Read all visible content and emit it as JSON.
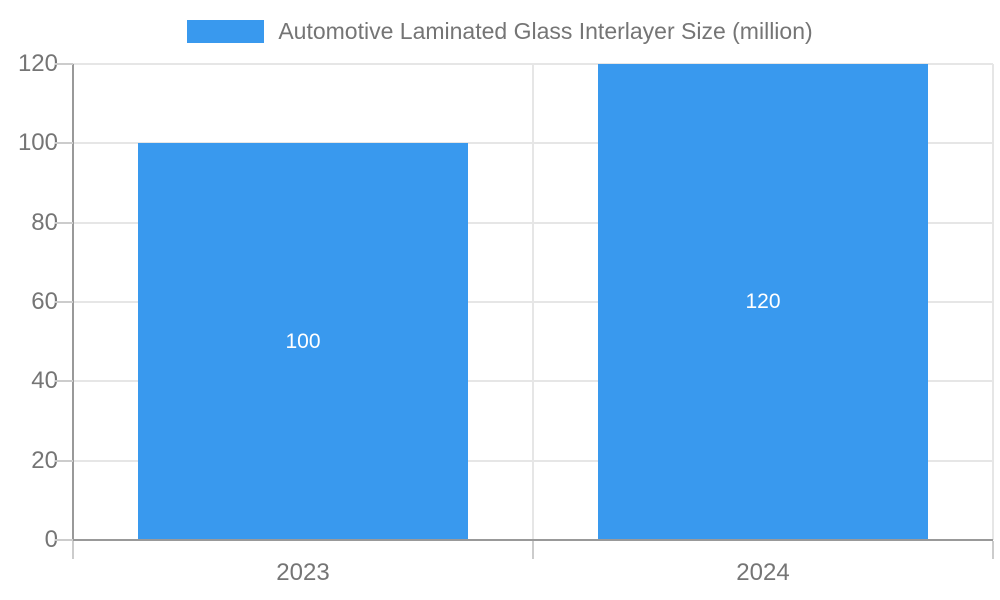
{
  "chart_data": {
    "type": "bar",
    "title": "Automotive Laminated Glass Interlayer Size (million)",
    "categories": [
      "2023",
      "2024"
    ],
    "series": [
      {
        "name": "Automotive Laminated Glass Interlayer Size (million)",
        "values": [
          100,
          120
        ]
      }
    ],
    "value_labels": [
      "100",
      "120"
    ],
    "xlabel": "",
    "ylabel": "",
    "ylim": [
      0,
      120
    ],
    "yticks": [
      0,
      20,
      40,
      60,
      80,
      100,
      120
    ],
    "ytick_labels": [
      "0",
      "20",
      "40",
      "60",
      "80",
      "100",
      "120"
    ],
    "grid": true,
    "legend_position": "top"
  },
  "legend": {
    "label": "Automotive Laminated Glass Interlayer Size (million)"
  },
  "colors": {
    "bar": "#3999EE",
    "axis_line": "#999999",
    "gridline": "#E6E6E6",
    "tick": "#CCCCCC",
    "axis_text": "#757575",
    "legend_text": "#757575",
    "value_label_text": "#FFFFFF",
    "background": "#FFFFFF"
  }
}
